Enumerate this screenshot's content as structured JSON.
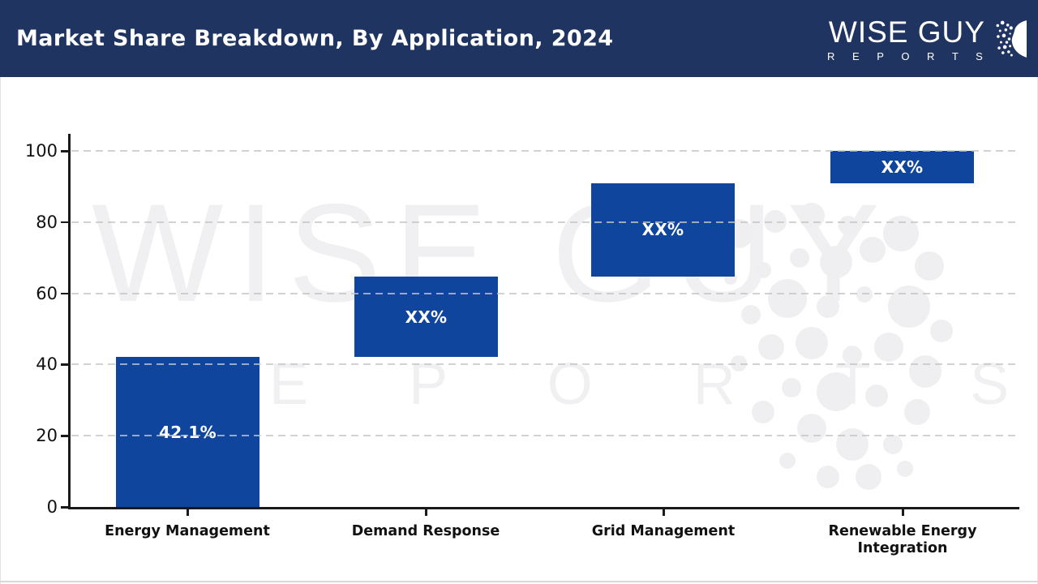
{
  "header": {
    "title": "Market Share Breakdown, By Application, 2024",
    "bg_color": "#1f3461",
    "brand": {
      "line1": "WISE GUY",
      "line2": "R E P O R T S"
    }
  },
  "watermark": {
    "line1": "WISE GUY",
    "line2": "R E P O R T S"
  },
  "chart_data": {
    "type": "bar",
    "subtype": "waterfall",
    "title": "Market Share Breakdown, By Application, 2024",
    "xlabel": "",
    "ylabel": "",
    "ylim": [
      0,
      104
    ],
    "y_ticks": [
      0,
      20,
      40,
      60,
      80,
      100
    ],
    "grid": true,
    "grid_style": "dashed",
    "bar_color": "#0f459d",
    "categories": [
      "Energy Management",
      "Demand Response",
      "Grid Management",
      "Renewable Energy Integration"
    ],
    "segments": [
      {
        "category": "Energy Management",
        "start": 0,
        "end": 42.1,
        "label": "42.1%"
      },
      {
        "category": "Demand Response",
        "start": 42.1,
        "end": 64.7,
        "label": "XX%"
      },
      {
        "category": "Grid Management",
        "start": 64.7,
        "end": 91.0,
        "label": "XX%"
      },
      {
        "category": "Renewable Energy Integration",
        "start": 91.0,
        "end": 100,
        "label": "XX%"
      }
    ]
  }
}
